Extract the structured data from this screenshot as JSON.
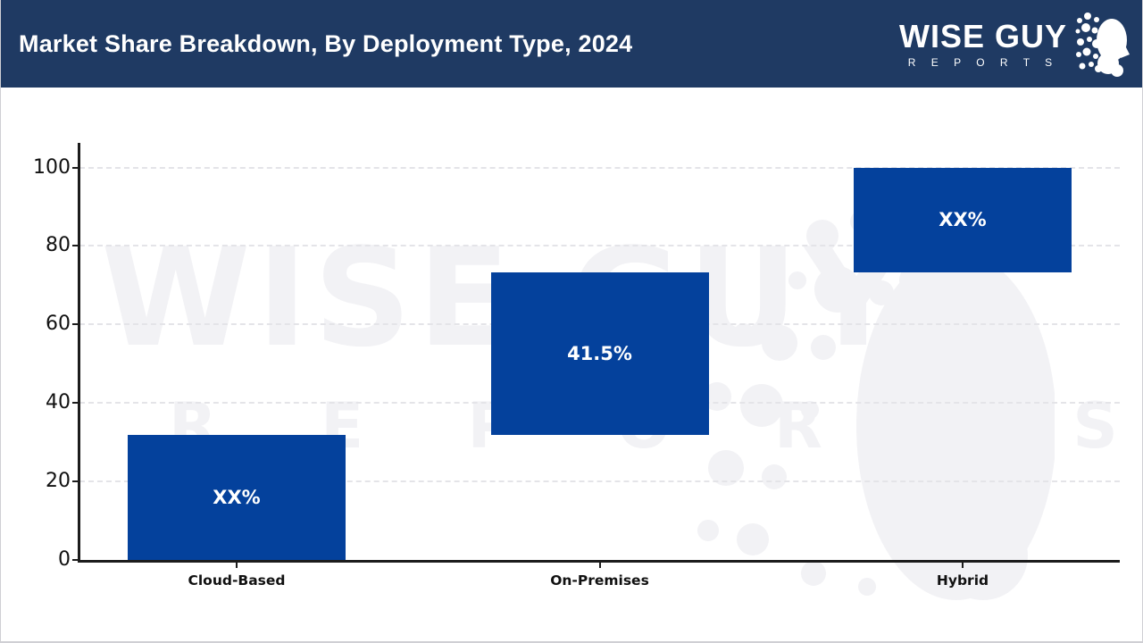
{
  "header": {
    "title": "Market Share Breakdown, By Deployment Type, 2024",
    "bg_color": "#1F3A63",
    "logo": {
      "name": "WISE GUY",
      "sub": "R E P O R T S"
    }
  },
  "watermark": {
    "line1": "WISE GUY",
    "line2": "R E P O R T S"
  },
  "chart_data": {
    "type": "bar",
    "subtype": "floating-segment-bars",
    "title": "Market Share Breakdown, By Deployment Type, 2024",
    "categories": [
      "Cloud-Based",
      "On-Premises",
      "Hybrid"
    ],
    "bars": [
      {
        "category": "Cloud-Based",
        "start": 0,
        "end": 31.8,
        "label": "XX%"
      },
      {
        "category": "On-Premises",
        "start": 31.8,
        "end": 73.3,
        "label": "41.5%"
      },
      {
        "category": "Hybrid",
        "start": 73.3,
        "end": 100,
        "label": "XX%"
      }
    ],
    "yticks": [
      0,
      20,
      40,
      60,
      80,
      100
    ],
    "ylim": [
      0,
      106
    ],
    "xlabel": "",
    "ylabel": "",
    "grid": "horizontal-dashed",
    "legend": "none",
    "bar_color": "#04419C",
    "bar_label_color": "#FFFFFF",
    "axis_color": "#1c1c1c",
    "gridline_color": "#e4e4e8"
  }
}
